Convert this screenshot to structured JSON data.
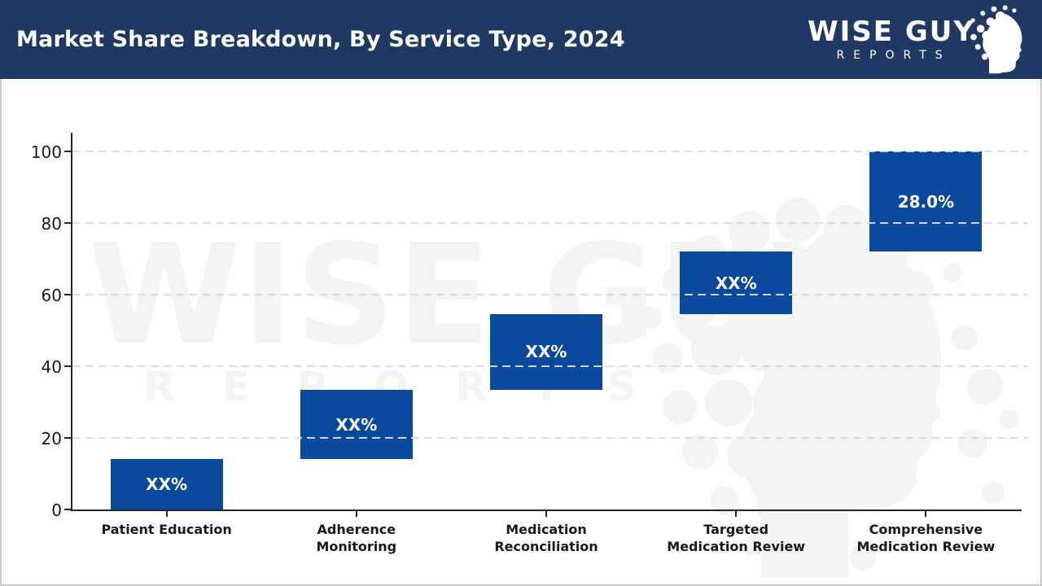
{
  "header": {
    "title": "Market Share Breakdown, By Service Type, 2024",
    "logo_line1": "WISE GUY",
    "logo_line2": "REPORTS"
  },
  "watermark": {
    "line1": "WISE GUY",
    "line2": "REPORTS"
  },
  "colors": {
    "header_bg": "#203864",
    "bar": "#0a4a9e",
    "bar_label": "#ffffff",
    "grid": "#dcdcdc",
    "axis": "#262626",
    "tick_label": "#1a1a1a",
    "watermark": "#f3f3f3",
    "frame_border": "#c9c9c9"
  },
  "chart_data": {
    "type": "bar",
    "subtype": "waterfall",
    "title": "Market Share Breakdown, By Service Type, 2024",
    "unit": "%",
    "categories": [
      {
        "name": "Patient Education",
        "lines": [
          "Patient Education"
        ]
      },
      {
        "name": "Adherence Monitoring",
        "lines": [
          "Adherence",
          "Monitoring"
        ]
      },
      {
        "name": "Medication Reconciliation",
        "lines": [
          "Medication",
          "Reconciliation"
        ]
      },
      {
        "name": "Targeted Medication Review",
        "lines": [
          "Targeted",
          "Medication Review"
        ]
      },
      {
        "name": "Comprehensive Medication Review",
        "lines": [
          "Comprehensive",
          "Medication Review"
        ]
      }
    ],
    "segments": [
      {
        "category": "Patient Education",
        "from": 0,
        "to": 14,
        "label": "XX%"
      },
      {
        "category": "Adherence Monitoring",
        "from": 14,
        "to": 33.5,
        "label": "XX%"
      },
      {
        "category": "Medication Reconciliation",
        "from": 33.5,
        "to": 54.5,
        "label": "XX%"
      },
      {
        "category": "Targeted Medication Review",
        "from": 54.5,
        "to": 72,
        "label": "XX%"
      },
      {
        "category": "Comprehensive Medication Review",
        "from": 72,
        "to": 100,
        "label": "28.0%"
      }
    ],
    "yticks": [
      0,
      20,
      40,
      60,
      80,
      100
    ],
    "ylim": [
      0,
      100
    ],
    "grid": "horizontal-dashed-above-bars",
    "legend": null
  }
}
